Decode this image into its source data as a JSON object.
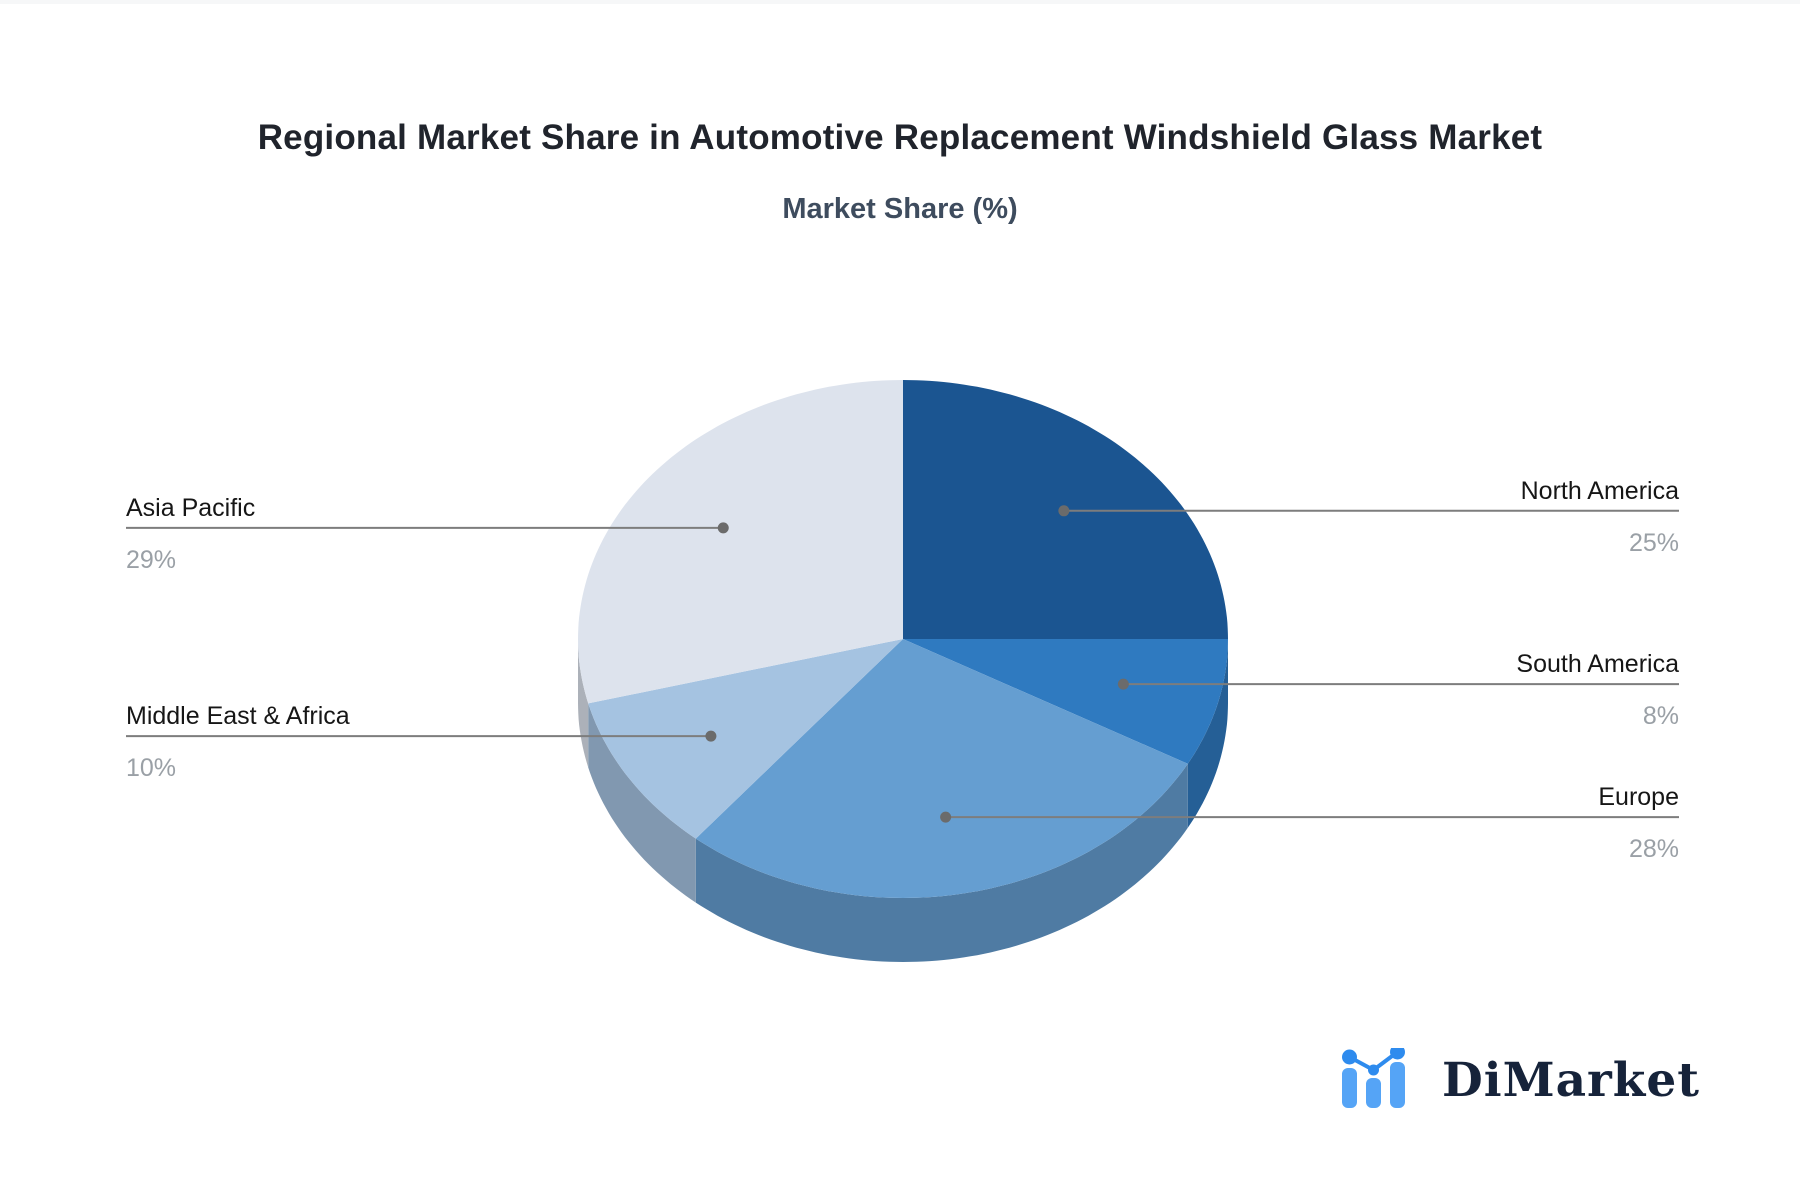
{
  "title": "Regional Market Share in Automotive Replacement Windshield Glass Market",
  "subtitle": "Market Share (%)",
  "logo": {
    "text": "DiMarket",
    "icon": "bar-chart-trend-icon",
    "icon_bar_color": "#55a4f6",
    "icon_accent_color": "#2e8bee",
    "text_color": "#16233a"
  },
  "colors": {
    "title": "#20242c",
    "subtitle": "#3e4c5e",
    "label_name": "#161616",
    "label_value": "#9aa0a6",
    "leader_line": "#7d7d7d",
    "leader_dot": "#6b6b6b",
    "background": "#ffffff"
  },
  "chart_data": {
    "type": "pie",
    "title": "Regional Market Share in Automotive Replacement Windshield Glass Market",
    "subtitle": "Market Share (%)",
    "unit": "%",
    "effect": "3d-depth",
    "start_angle_deg": 0,
    "direction": "clockwise",
    "legend_position": "callout-labels",
    "slices": [
      {
        "label": "North America",
        "value": 25,
        "display": "25%",
        "color": "#1B5591",
        "side": "right"
      },
      {
        "label": "South America",
        "value": 8,
        "display": "8%",
        "color": "#2F7AC0",
        "side": "right"
      },
      {
        "label": "Europe",
        "value": 28,
        "display": "28%",
        "color": "#659ED1",
        "side": "right"
      },
      {
        "label": "Middle East & Africa",
        "value": 10,
        "display": "10%",
        "color": "#A5C3E1",
        "side": "left"
      },
      {
        "label": "Asia Pacific",
        "value": 29,
        "display": "29%",
        "color": "#DDE3ED",
        "side": "left"
      }
    ]
  }
}
